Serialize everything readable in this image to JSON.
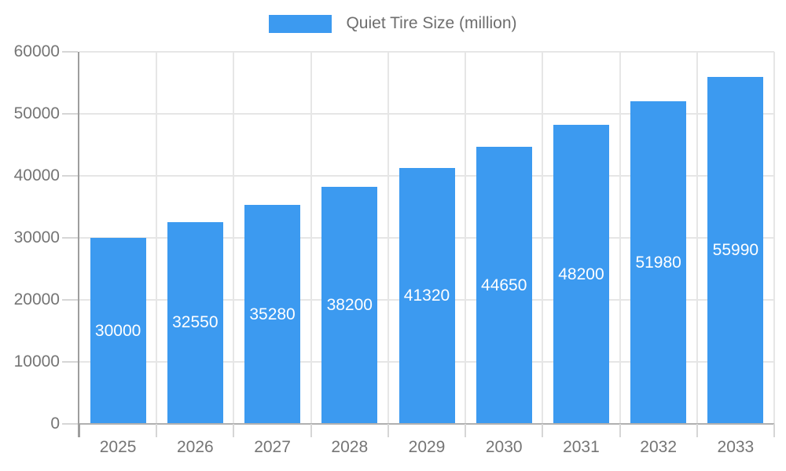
{
  "chart_data": {
    "type": "bar",
    "title": "",
    "legend": {
      "label": "Quiet Tire Size (million)",
      "position": "top-center"
    },
    "categories": [
      "2025",
      "2026",
      "2027",
      "2028",
      "2029",
      "2030",
      "2031",
      "2032",
      "2033"
    ],
    "values": [
      30000,
      32550,
      35280,
      38200,
      41320,
      44650,
      48200,
      51980,
      55990
    ],
    "bar_value_labels": [
      "30000",
      "32550",
      "35280",
      "38200",
      "41320",
      "44650",
      "48200",
      "51980",
      "55990"
    ],
    "xlabel": "",
    "ylabel": "",
    "ylim": [
      0,
      60000
    ],
    "y_ticks": [
      0,
      10000,
      20000,
      30000,
      40000,
      50000,
      60000
    ],
    "y_tick_labels": [
      "0",
      "10000",
      "20000",
      "30000",
      "40000",
      "50000",
      "60000"
    ],
    "grid": "horizontal-and-vertical",
    "colors": {
      "bar": "#3c9af0",
      "bar_value_text": "#ffffff",
      "axis_text": "#757575",
      "legend_text": "#6e6e6e",
      "gridline": "#e6e6e6",
      "tick": "#d6d6d6",
      "y_axis_line": "#9e9e9e",
      "x_axis_line": "#b0b0b0",
      "background": "#ffffff"
    }
  }
}
